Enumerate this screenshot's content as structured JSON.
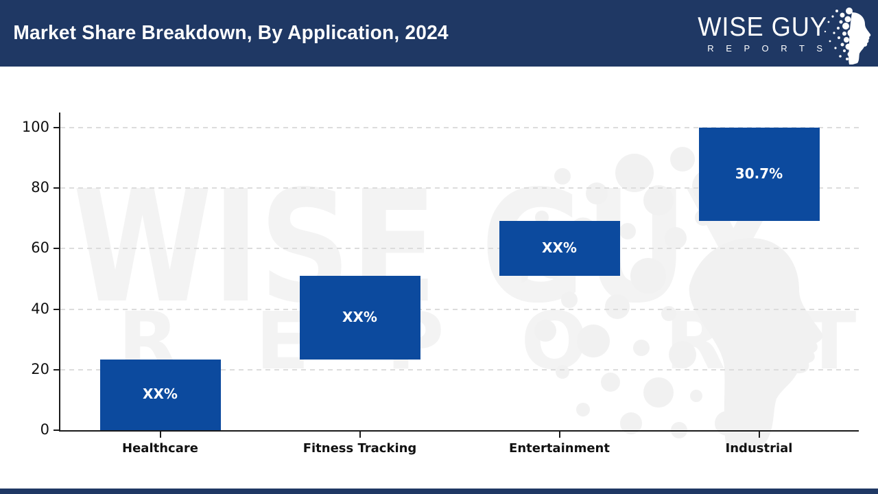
{
  "header": {
    "title": "Market Share Breakdown, By Application, 2024",
    "logo": {
      "line1": "WISE GUY",
      "line2": "R E P O R T S"
    }
  },
  "watermark": {
    "line1": "WISE GUY",
    "line2": "R E P O R T S"
  },
  "colors": {
    "header_navy": "#1f3864",
    "bar_blue": "#0c4a9e",
    "watermark_gray": "#f3f3f3",
    "gridline_gray": "#dcdcdc",
    "axis_black": "#1a1a1a",
    "label_white": "#ffffff"
  },
  "chart_data": {
    "type": "bar",
    "subtype": "floating-waterfall",
    "title": "Market Share Breakdown, By Application, 2024",
    "xlabel": "",
    "ylabel": "",
    "ylim": [
      0,
      105
    ],
    "yticks": [
      0,
      20,
      40,
      60,
      80,
      100
    ],
    "grid": "dashed-horizontal",
    "legend": "none",
    "categories": [
      "Healthcare",
      "Fitness Tracking",
      "Entertainment",
      "Industrial"
    ],
    "segments": [
      {
        "category": "Healthcare",
        "start": 0,
        "end": 23.3,
        "value_label": "XX%"
      },
      {
        "category": "Fitness Tracking",
        "start": 23.3,
        "end": 51.1,
        "value_label": "XX%"
      },
      {
        "category": "Entertainment",
        "start": 51.1,
        "end": 69.3,
        "value_label": "XX%"
      },
      {
        "category": "Industrial",
        "start": 69.3,
        "end": 100,
        "value_label": "30.7%"
      }
    ]
  }
}
